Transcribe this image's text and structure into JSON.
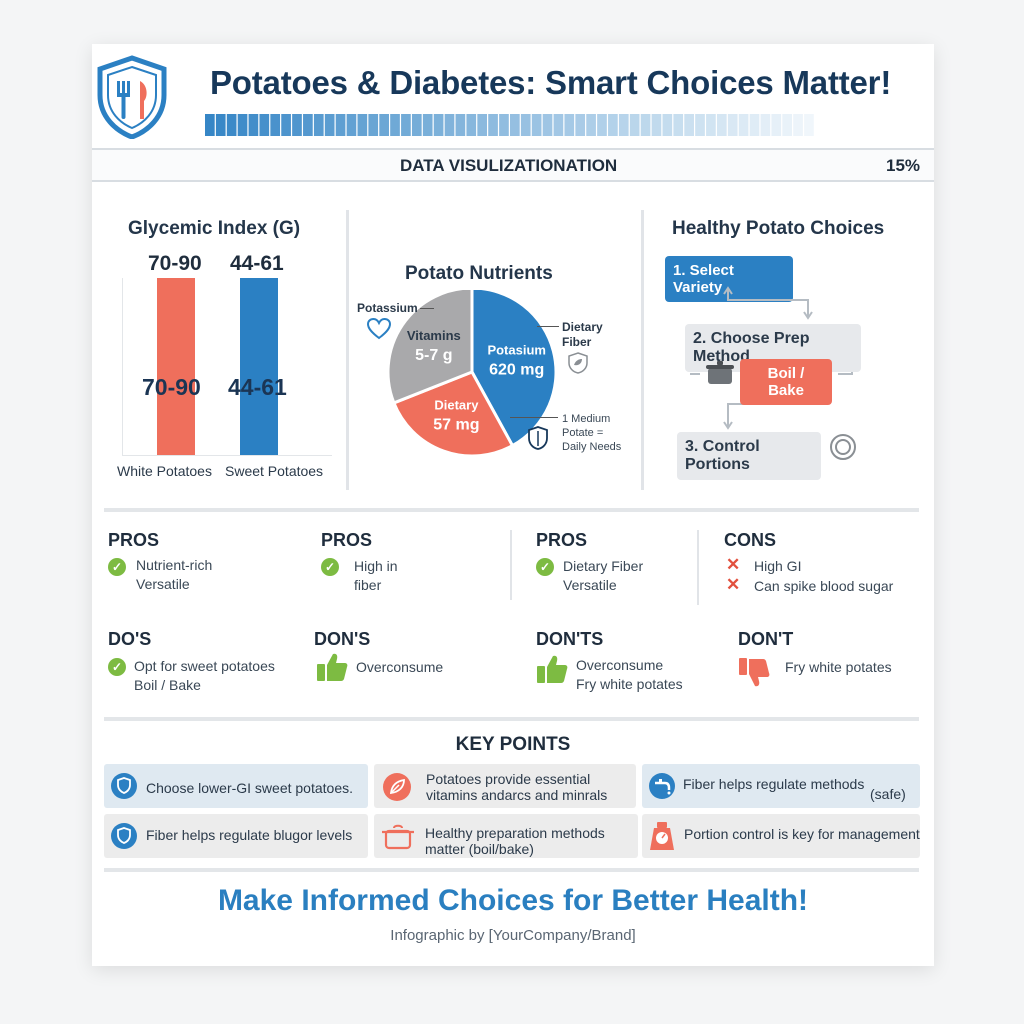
{
  "header": {
    "title": "Potatoes & Diabetes: Smart Choices Matter!",
    "brand_colors": {
      "navy": "#17385a",
      "blue": "#2b80c3",
      "coral": "#ef6f5c",
      "green": "#7dbb42"
    }
  },
  "databar": {
    "label": "DATA VISULIZATIONATION",
    "percent": "15%"
  },
  "glycemic": {
    "title": "Glycemic Index (G)",
    "bars": [
      {
        "label": "White Potatoes",
        "value_top": "70-90",
        "value_inner": "70-90",
        "color": "#ef6f5c"
      },
      {
        "label": "Sweet Potatoes",
        "value_top": "44-61",
        "value_inner": "44-61",
        "color": "#2b80c3"
      }
    ]
  },
  "nutrients": {
    "title": "Potato Nutrients",
    "callout_potassium": "Potassium",
    "callout_fiber": "Dietary Fiber",
    "callout_note": "1 Medium Potate = Daily Needs",
    "chart_data": {
      "type": "pie",
      "slices": [
        {
          "name": "Potasium",
          "label": "620 mg",
          "share": 0.42,
          "color": "#2b80c3"
        },
        {
          "name": "Dietary",
          "label": "57 mg",
          "share": 0.27,
          "color": "#ef6f5c"
        },
        {
          "name": "Vitamins",
          "label": "5-7 g",
          "share": 0.31,
          "color": "#a9a9ab"
        }
      ]
    }
  },
  "choices": {
    "title": "Healthy Potato Choices",
    "step1": "1. Select Variety",
    "step2": "2. Choose Prep Method",
    "prep": "Boil / Bake",
    "step3": "3. Control Portions"
  },
  "pros_cons": [
    {
      "head": "PROS",
      "items": [
        "Nutrient-rich",
        "Versatile"
      ],
      "mark": "check"
    },
    {
      "head": "PROS",
      "items": [
        "High in",
        "fiber"
      ],
      "mark": "check"
    },
    {
      "head": "PROS",
      "items": [
        "Dietary Fiber",
        "Versatile"
      ],
      "mark": "check"
    },
    {
      "head": "CONS",
      "items": [
        "High GI",
        "Can spike blood sugar"
      ],
      "mark": "cross"
    }
  ],
  "dos": [
    {
      "head": "DO'S",
      "items": [
        "Opt for sweet potatoes",
        "Boil / Bake"
      ],
      "mark": "check"
    },
    {
      "head": "DON'S",
      "items": [
        "Overconsume"
      ],
      "mark": "thumb-up"
    },
    {
      "head": "DON'TS",
      "items": [
        "Overconsume",
        "Fry white potates"
      ],
      "mark": "thumb-up"
    },
    {
      "head": "DON'T",
      "items": [
        "Fry white potates"
      ],
      "mark": "thumb-down"
    }
  ],
  "key_points": {
    "title": "KEY POINTS",
    "cards": [
      {
        "text": "Choose lower-GI sweet potatoes.",
        "icon": "shield-icon"
      },
      {
        "text": "Potatoes provide essential vitamins andarcs and minrals",
        "icon": "leaf-icon"
      },
      {
        "text": "Fiber helps regulate methods",
        "extra": "(safe)",
        "icon": "faucet-icon"
      },
      {
        "text": "Fiber helps regulate blugor levels",
        "icon": "shield-icon"
      },
      {
        "text": "Healthy preparation methods matter (boil/bake)",
        "icon": "pot-icon"
      },
      {
        "text": "Portion control is key for management",
        "icon": "scale-icon"
      }
    ]
  },
  "footer": {
    "title": "Make Informed Choices for Better Health!",
    "credit": "Infographic by [YourCompany/Brand]"
  }
}
